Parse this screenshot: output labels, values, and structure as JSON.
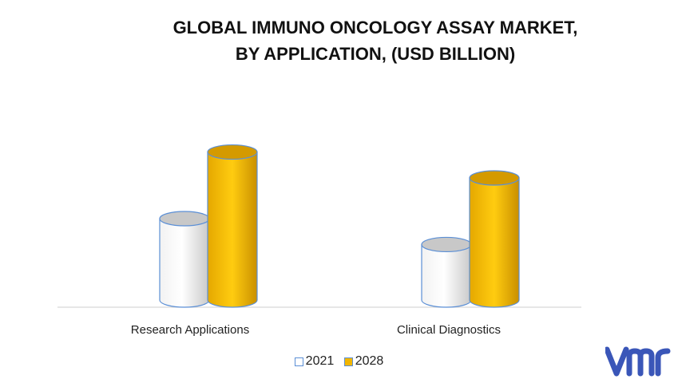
{
  "title_line1": "GLOBAL IMMUNO ONCOLOGY ASSAY MARKET,",
  "title_line2": "BY APPLICATION, (USD BILLION)",
  "chart_data": {
    "type": "bar",
    "style": "3d-cylinder",
    "categories": [
      "Research Applications",
      "Clinical Diagnostics"
    ],
    "series": [
      {
        "name": "2021",
        "values": [
          1.1,
          0.75
        ],
        "color": "#ffffff"
      },
      {
        "name": "2028",
        "values": [
          2.0,
          1.65
        ],
        "color": "#f2b600"
      }
    ],
    "ylim": [
      0,
      2.2
    ],
    "grid": false,
    "legend_position": "bottom"
  },
  "legend": {
    "label_2021": "2021",
    "label_2028": "2028"
  },
  "logo": {
    "text": "vmr",
    "color": "#3a56b8"
  }
}
